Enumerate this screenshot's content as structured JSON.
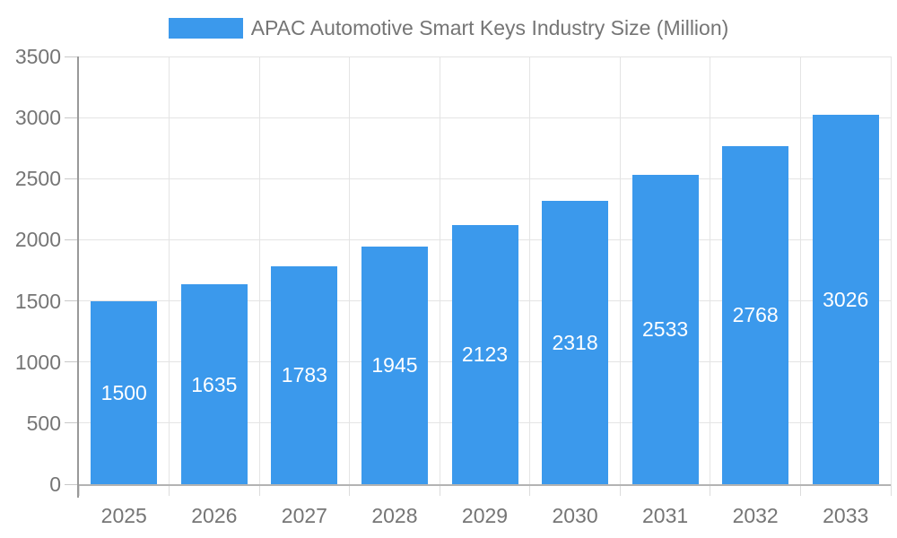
{
  "legend": {
    "series_label": "APAC Automotive Smart Keys Industry Size (Million)"
  },
  "colors": {
    "bar": "#3B99EC",
    "bar_label": "#FFFFFF",
    "grid": "#E4E4E4",
    "y_axis_line": "#999999",
    "x_axis_line": "#B3B3B3",
    "y_tick": "#C8C8C8",
    "x_tick": "#DCDCDC",
    "label_text": "#757575",
    "background": "#FFFFFF"
  },
  "chart_data": {
    "type": "bar",
    "series_name": "APAC Automotive Smart Keys Industry Size (Million)",
    "categories": [
      "2025",
      "2026",
      "2027",
      "2028",
      "2029",
      "2030",
      "2031",
      "2032",
      "2033"
    ],
    "values": [
      1500,
      1635,
      1783,
      1945,
      2123,
      2318,
      2533,
      2768,
      3026
    ],
    "title": "APAC Automotive Smart Keys Industry Size (Million)",
    "xlabel": "",
    "ylabel": "",
    "ylim": [
      0,
      3500
    ],
    "ytick_interval": 500,
    "yticks": [
      0,
      500,
      1000,
      1500,
      2000,
      2500,
      3000,
      3500
    ],
    "grid": true,
    "legend_position": "top-center",
    "value_labels": "inside-center"
  }
}
